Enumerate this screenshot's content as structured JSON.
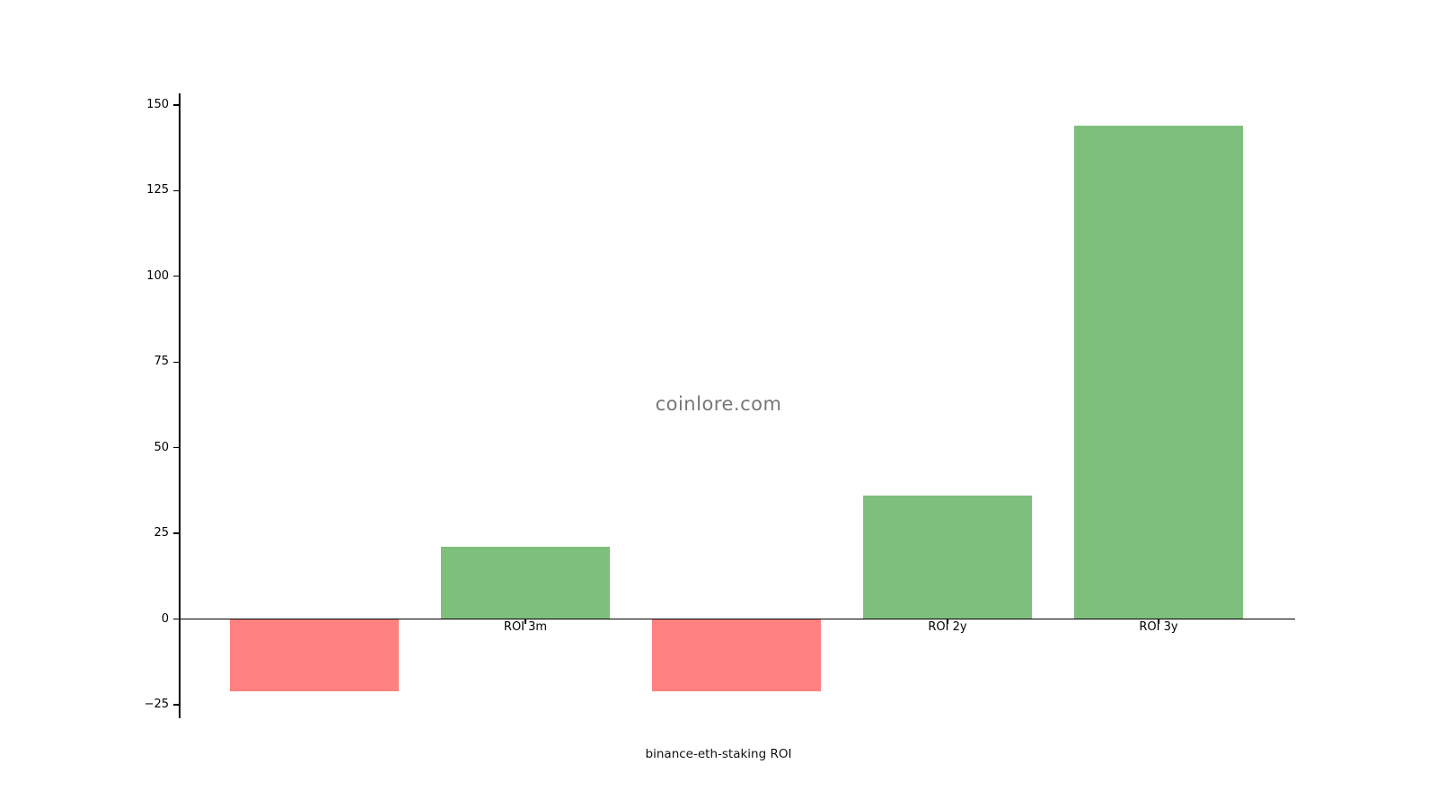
{
  "page": {
    "background": "#ffffff"
  },
  "chart_data": {
    "type": "bar",
    "title": "binance-eth-staking ROI",
    "watermark": "coinlore.com",
    "categories": [
      "",
      "ROI 3m",
      "",
      "ROI 2y",
      "ROI 3y"
    ],
    "values": [
      -21,
      21,
      -21,
      36,
      144
    ],
    "series": [
      {
        "name": "ROI",
        "values": [
          -21,
          21,
          -21,
          36,
          144
        ]
      }
    ],
    "bar_colors": [
      "#ff8080",
      "#7ebf7e",
      "#ff8080",
      "#7ebf7e",
      "#7ebf7e"
    ],
    "positive_color": "#7ebf7e",
    "negative_color": "#ff8080",
    "axis_color": "#000000",
    "watermark_color": "#777777",
    "xlabel": "",
    "ylabel": "",
    "y_ticks": [
      150,
      125,
      100,
      75,
      50,
      25,
      0,
      -25
    ],
    "ylim": [
      -29,
      153
    ],
    "baseline": 0,
    "grid": false,
    "legend": null
  }
}
